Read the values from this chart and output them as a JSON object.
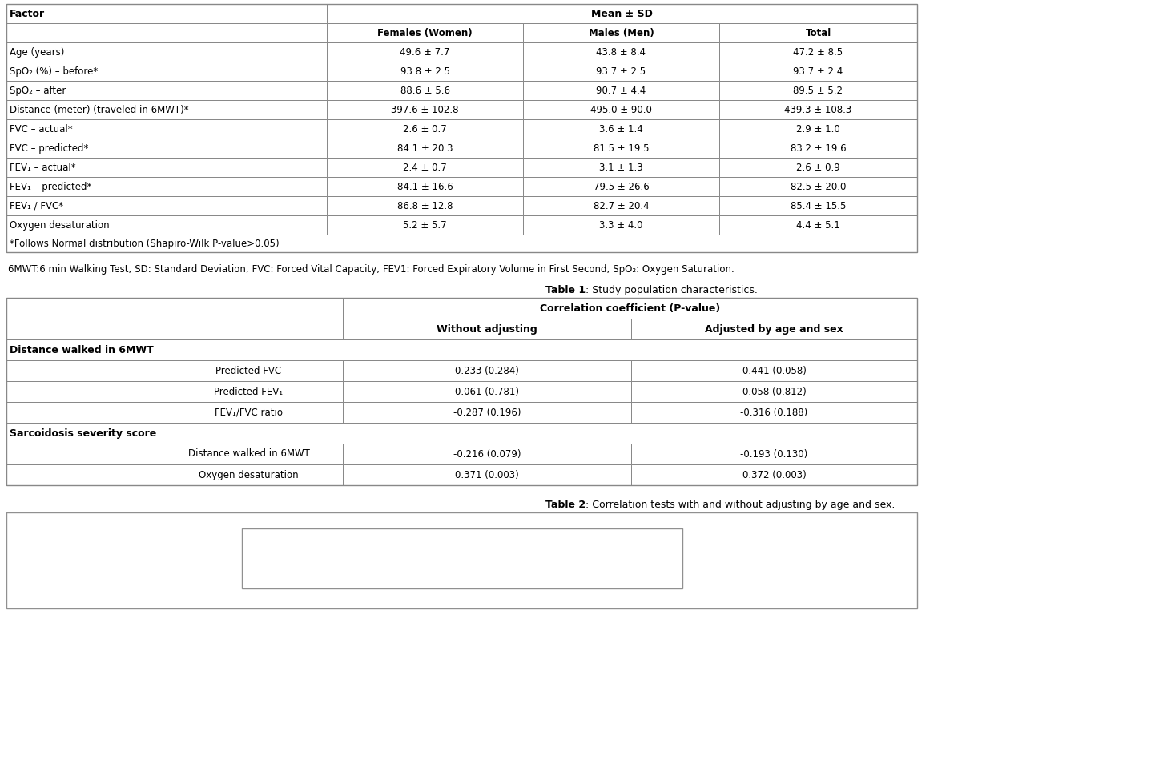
{
  "table1": {
    "rows": [
      [
        "Age (years)",
        "49.6 ± 7.7",
        "43.8 ± 8.4",
        "47.2 ± 8.5"
      ],
      [
        "SpO₂ (%) – before*",
        "93.8 ± 2.5",
        "93.7 ± 2.5",
        "93.7 ± 2.4"
      ],
      [
        "SpO₂ – after",
        "88.6 ± 5.6",
        "90.7 ± 4.4",
        "89.5 ± 5.2"
      ],
      [
        "Distance (meter) (traveled in 6MWT)*",
        "397.6 ± 102.8",
        "495.0 ± 90.0",
        "439.3 ± 108.3"
      ],
      [
        "FVC – actual*",
        "2.6 ± 0.7",
        "3.6 ± 1.4",
        "2.9 ± 1.0"
      ],
      [
        "FVC – predicted*",
        "84.1 ± 20.3",
        "81.5 ± 19.5",
        "83.2 ± 19.6"
      ],
      [
        "FEV₁ – actual*",
        "2.4 ± 0.7",
        "3.1 ± 1.3",
        "2.6 ± 0.9"
      ],
      [
        "FEV₁ – predicted*",
        "84.1 ± 16.6",
        "79.5 ± 26.6",
        "82.5 ± 20.0"
      ],
      [
        "FEV₁ / FVC*",
        "86.8 ± 12.8",
        "82.7 ± 20.4",
        "85.4 ± 15.5"
      ],
      [
        "Oxygen desaturation",
        "5.2 ± 5.7",
        "3.3 ± 4.0",
        "4.4 ± 5.1"
      ]
    ],
    "footnote": "*Follows Normal distribution (Shapiro-Wilk P-value>0.05)",
    "abbrev_line": "6MWT:6 min Walking Test; SD: Standard Deviation; FVC: Forced Vital Capacity; FEV1: Forced Expiratory Volume in First Second; SpO₂: Oxygen Saturation.",
    "caption_bold": "Table 1",
    "caption_normal": ": Study population characteristics."
  },
  "table2": {
    "sections": [
      {
        "section_header": "Distance walked in 6MWT",
        "rows": [
          [
            "Predicted FVC",
            "0.233 (0.284)",
            "0.441 (0.058)"
          ],
          [
            "Predicted FEV₁",
            "0.061 (0.781)",
            "0.058 (0.812)"
          ],
          [
            "FEV₁/FVC ratio",
            "-0.287 (0.196)",
            "-0.316 (0.188)"
          ]
        ]
      },
      {
        "section_header": "Sarcoidosis severity score",
        "rows": [
          [
            "Distance walked in 6MWT",
            "-0.216 (0.079)",
            "-0.193 (0.130)"
          ],
          [
            "Oxygen desaturation",
            "0.371 (0.003)",
            "0.372 (0.003)"
          ]
        ]
      }
    ],
    "caption_bold": "Table 2",
    "caption_normal": ": Correlation tests with and without adjusting by age and sex."
  },
  "bg_color": "#ffffff",
  "edge_color": "#888888",
  "text_color": "#000000"
}
